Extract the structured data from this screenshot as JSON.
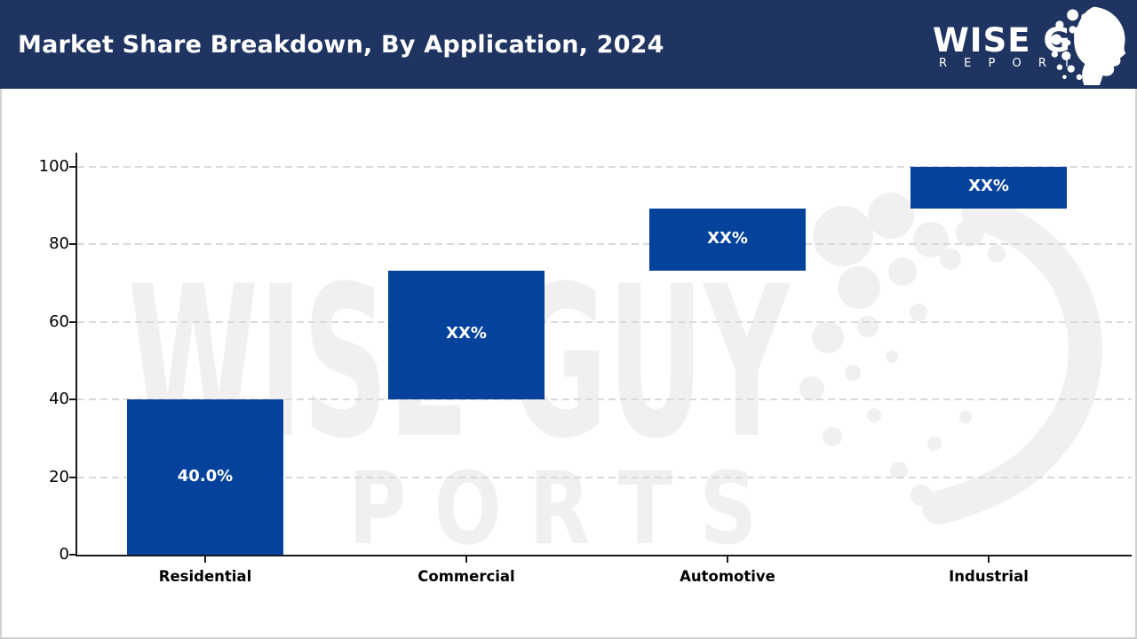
{
  "header": {
    "title": "Market Share Breakdown, By Application, 2024",
    "bg_color": "#1f3460",
    "logo": {
      "line1": "WISE GUY",
      "line2": "R E P O R T S"
    }
  },
  "watermark": {
    "line1": "WISE GUY",
    "line2": "P O R T S",
    "color": "#f0f0f0"
  },
  "chart_data": {
    "type": "bar",
    "subtype": "waterfall",
    "title": "Market Share Breakdown, By Application, 2024",
    "categories": [
      "Residential",
      "Commercial",
      "Automotive",
      "Industrial"
    ],
    "segments": [
      {
        "category": "Residential",
        "start": 0,
        "end": 40,
        "label": "40.0%"
      },
      {
        "category": "Commercial",
        "start": 40,
        "end": 73.3,
        "label": "XX%"
      },
      {
        "category": "Automotive",
        "start": 73.3,
        "end": 89.3,
        "label": "XX%"
      },
      {
        "category": "Industrial",
        "start": 89.3,
        "end": 100,
        "label": "XX%"
      }
    ],
    "ylim": [
      0,
      100
    ],
    "yticks": [
      0,
      20,
      40,
      60,
      80,
      100
    ],
    "grid": "dashed-horizontal",
    "legend": "none",
    "bar_color": "#05429b",
    "bar_label_color": "#ffffff",
    "axis_color": "#1a1a1a"
  }
}
